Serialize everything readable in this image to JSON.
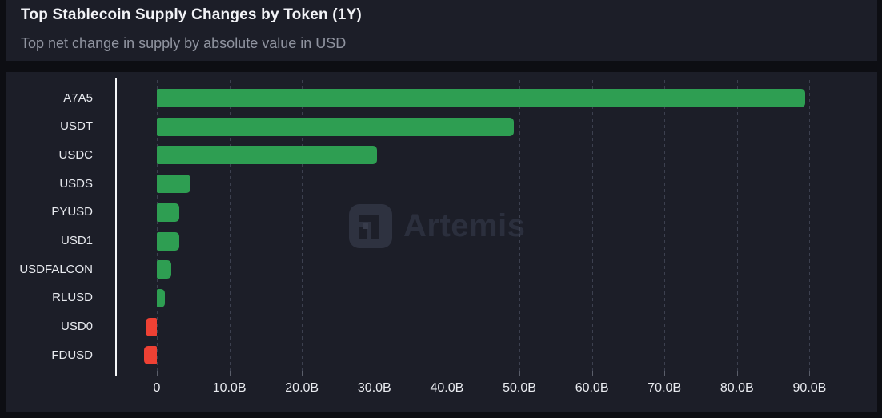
{
  "header": {
    "title": "Top Stablecoin Supply Changes by Token (1Y)",
    "subtitle": "Top net change in supply by absolute value in USD"
  },
  "watermark": {
    "text": "Artemis"
  },
  "chart_data": {
    "type": "bar",
    "orientation": "horizontal",
    "title": "Top Stablecoin Supply Changes by Token (1Y)",
    "subtitle": "Top net change in supply by absolute value in USD",
    "unit": "USD (billions)",
    "categories": [
      "A7A5",
      "USDT",
      "USDC",
      "USDS",
      "PYUSD",
      "USD1",
      "USDFALCON",
      "RLUSD",
      "USD0",
      "FDUSD"
    ],
    "values": [
      89.4,
      49.2,
      30.3,
      4.6,
      3.1,
      3.1,
      2.0,
      1.1,
      -1.6,
      -1.8
    ],
    "x_ticks": [
      {
        "value": 0,
        "label": "0"
      },
      {
        "value": 10,
        "label": "10.0B"
      },
      {
        "value": 20,
        "label": "20.0B"
      },
      {
        "value": 30,
        "label": "30.0B"
      },
      {
        "value": 40,
        "label": "40.0B"
      },
      {
        "value": 50,
        "label": "50.0B"
      },
      {
        "value": 60,
        "label": "60.0B"
      },
      {
        "value": 70,
        "label": "70.0B"
      },
      {
        "value": 80,
        "label": "80.0B"
      },
      {
        "value": 90,
        "label": "90.0B"
      },
      {
        "value": 100,
        "label": ""
      }
    ],
    "xlim": [
      -6,
      99
    ],
    "grid": "dashed-vertical",
    "legend": "none",
    "colors": {
      "positive": "#2e9e52",
      "negative": "#ee4134",
      "axis_line": "#f5f6f8",
      "labels": "#e8eaef",
      "gridline": "#3c404f",
      "panel_background": "#1c1e28",
      "page_background": "#0d0e13"
    }
  }
}
